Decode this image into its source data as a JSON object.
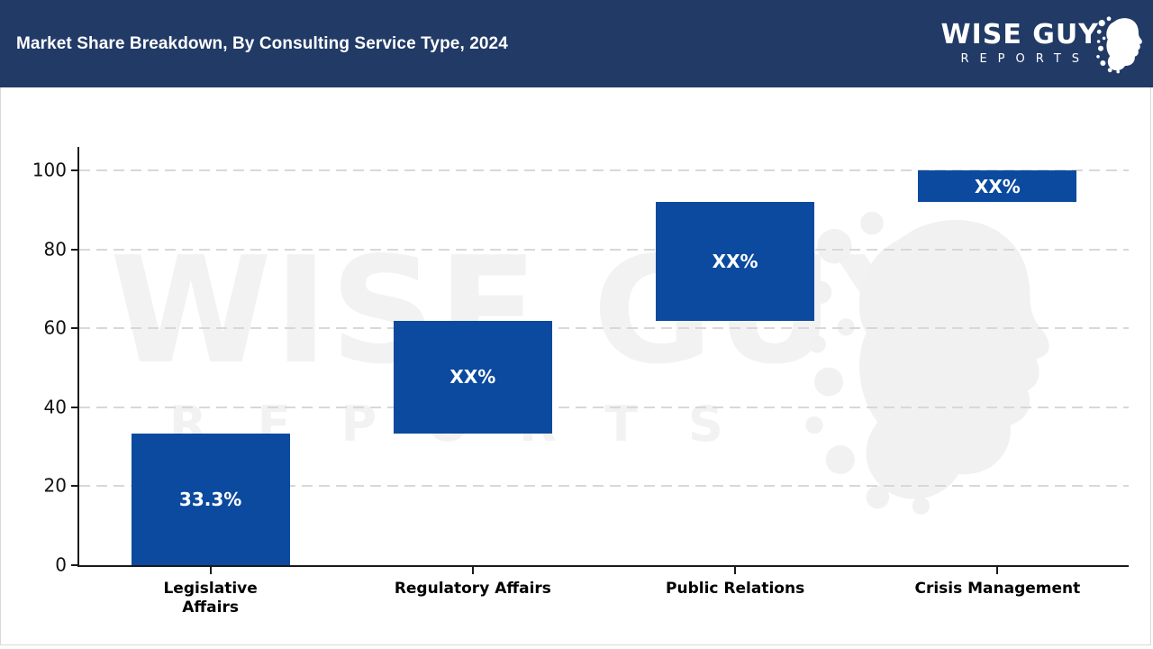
{
  "header": {
    "title": "Market Share Breakdown, By Consulting Service Type, 2024",
    "bg_color": "#213a66",
    "logo": {
      "line1": "WISE GUY",
      "line2": "REPORTS"
    }
  },
  "watermark": {
    "line1": "WISE GUY",
    "line2": "REPORTS",
    "color": "#f2f2f2"
  },
  "chart_data": {
    "type": "bar",
    "subtype": "waterfall",
    "title": "Market Share Breakdown, By Consulting Service Type, 2024",
    "categories": [
      "Legislative\nAffairs",
      "Regulatory Affairs",
      "Public Relations",
      "Crisis Management"
    ],
    "series": [
      {
        "segments": [
          {
            "category": "Legislative Affairs",
            "from": 0,
            "to": 33.3,
            "label": "33.3%"
          },
          {
            "category": "Regulatory Affairs",
            "from": 33.3,
            "to": 62,
            "label": "XX%"
          },
          {
            "category": "Public Relations",
            "from": 62,
            "to": 92,
            "label": "XX%"
          },
          {
            "category": "Crisis Management",
            "from": 92,
            "to": 100,
            "label": "XX%"
          }
        ]
      }
    ],
    "xlabel": "",
    "ylabel": "",
    "yticks": [
      0,
      20,
      40,
      60,
      80,
      100
    ],
    "ylim": [
      0,
      106
    ],
    "grid": "horizontal-dashed",
    "grid_color": "#d8d8d8",
    "legend": "none",
    "bar_color": "#0b4a9e",
    "bar_label_color": "#ffffff"
  }
}
